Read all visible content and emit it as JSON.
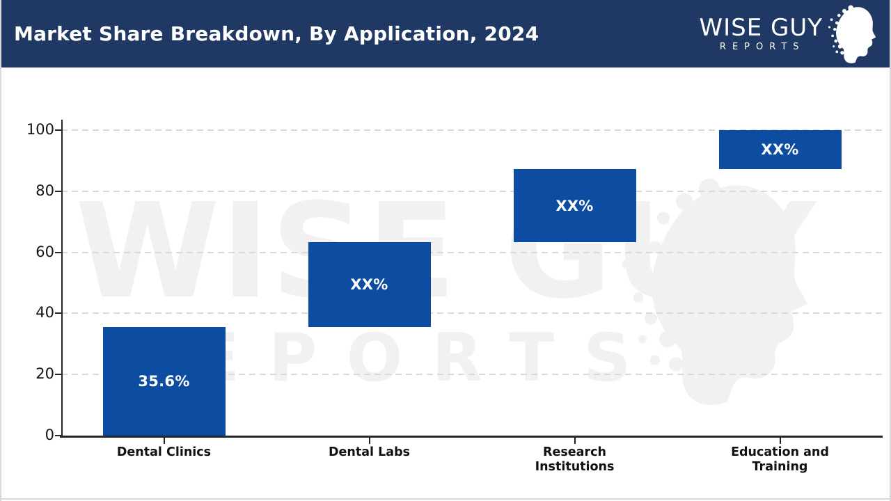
{
  "header": {
    "title": "Market Share Breakdown, By Application, 2024",
    "logo": {
      "line1": "WISE GUY",
      "line2": "REPORTS"
    },
    "bg_color": "#1f3864"
  },
  "watermark": {
    "line1": "WISE GUY",
    "line2": "REPORTS"
  },
  "chart_data": {
    "type": "bar",
    "subtype": "floating-waterfall",
    "title": "Market Share Breakdown, By Application, 2024",
    "categories": [
      "Dental Clinics",
      "Dental Labs",
      "Research\nInstitutions",
      "Education and\nTraining"
    ],
    "bars": [
      {
        "category": "Dental Clinics",
        "start": 0,
        "end": 35.6,
        "label": "35.6%"
      },
      {
        "category": "Dental Labs",
        "start": 35.6,
        "end": 63.3,
        "label": "XX%"
      },
      {
        "category": "Research Institutions",
        "start": 63.3,
        "end": 87.2,
        "label": "XX%"
      },
      {
        "category": "Education and Training",
        "start": 87.2,
        "end": 100.0,
        "label": "XX%"
      }
    ],
    "xlabel": "",
    "ylabel": "",
    "ylim": [
      0,
      100
    ],
    "yticks": [
      0,
      20,
      40,
      60,
      80,
      100
    ],
    "grid": "horizontal-dashed",
    "legend": "none",
    "bar_color": "#0d4da1",
    "bar_label_color": "#ffffff",
    "axis_color": "#262626",
    "grid_color": "#d9d9d9"
  }
}
